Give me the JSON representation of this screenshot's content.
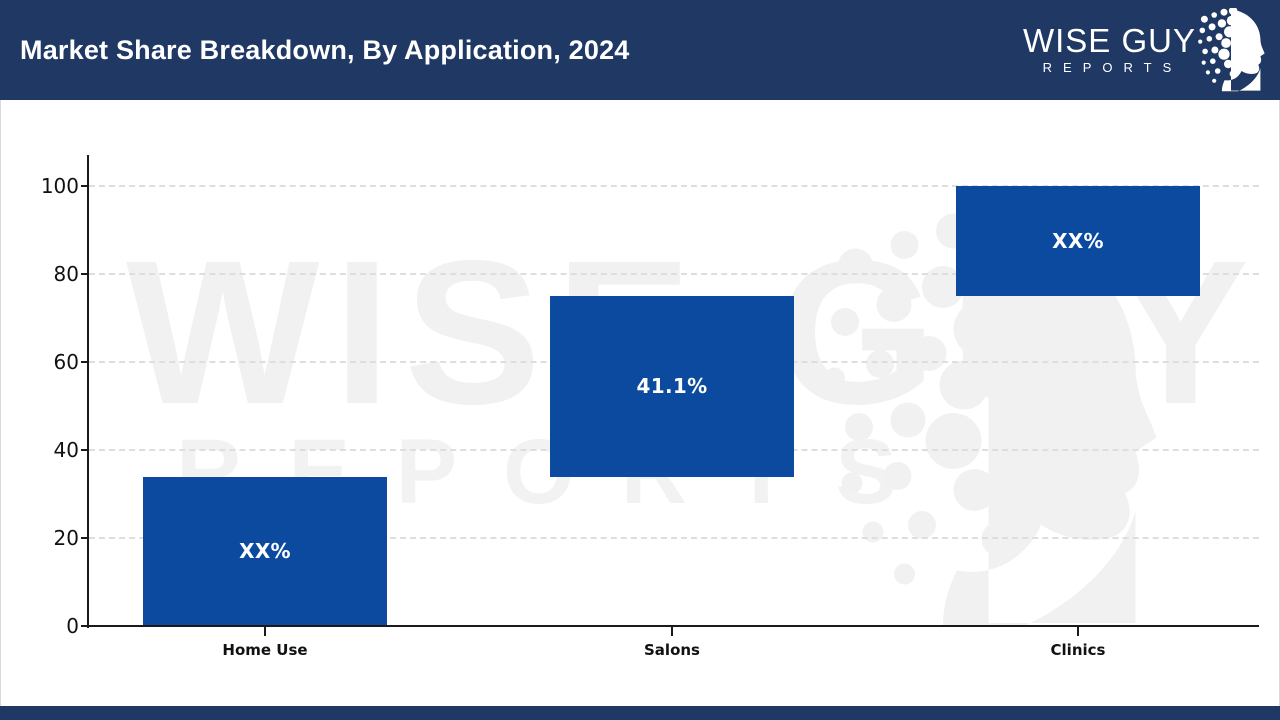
{
  "header": {
    "title": "Market Share Breakdown, By Application, 2024",
    "logo_line1": "WISE GUY",
    "logo_line2": "REPORTS"
  },
  "watermark": {
    "line1": "WISE GUY",
    "line2": "REPORTS"
  },
  "colors": {
    "header_bg": "#1f3864",
    "bar_fill": "#0b4a9e",
    "bar_label_text": "#ffffff",
    "gridline": "#dedede",
    "axis": "#1a1a1a",
    "watermark": "#f1f1f2"
  },
  "chart_data": {
    "type": "bar",
    "subtype": "floating-waterfall",
    "title": "Market Share Breakdown, By Application, 2024",
    "categories": [
      "Home Use",
      "Salons",
      "Clinics"
    ],
    "series": [
      {
        "name": "Market Share",
        "segments": [
          {
            "category": "Home Use",
            "start": 0,
            "end": 33.9,
            "label": "XX%"
          },
          {
            "category": "Salons",
            "start": 33.9,
            "end": 75.0,
            "label": "41.1%",
            "value": 41.1
          },
          {
            "category": "Clinics",
            "start": 75.0,
            "end": 100,
            "label": "XX%"
          }
        ]
      }
    ],
    "xlabel": "",
    "ylabel": "",
    "ylim": [
      0,
      100
    ],
    "yticks": [
      0,
      20,
      40,
      60,
      80,
      100
    ],
    "grid": "horizontal-dashed",
    "legend": "none"
  }
}
